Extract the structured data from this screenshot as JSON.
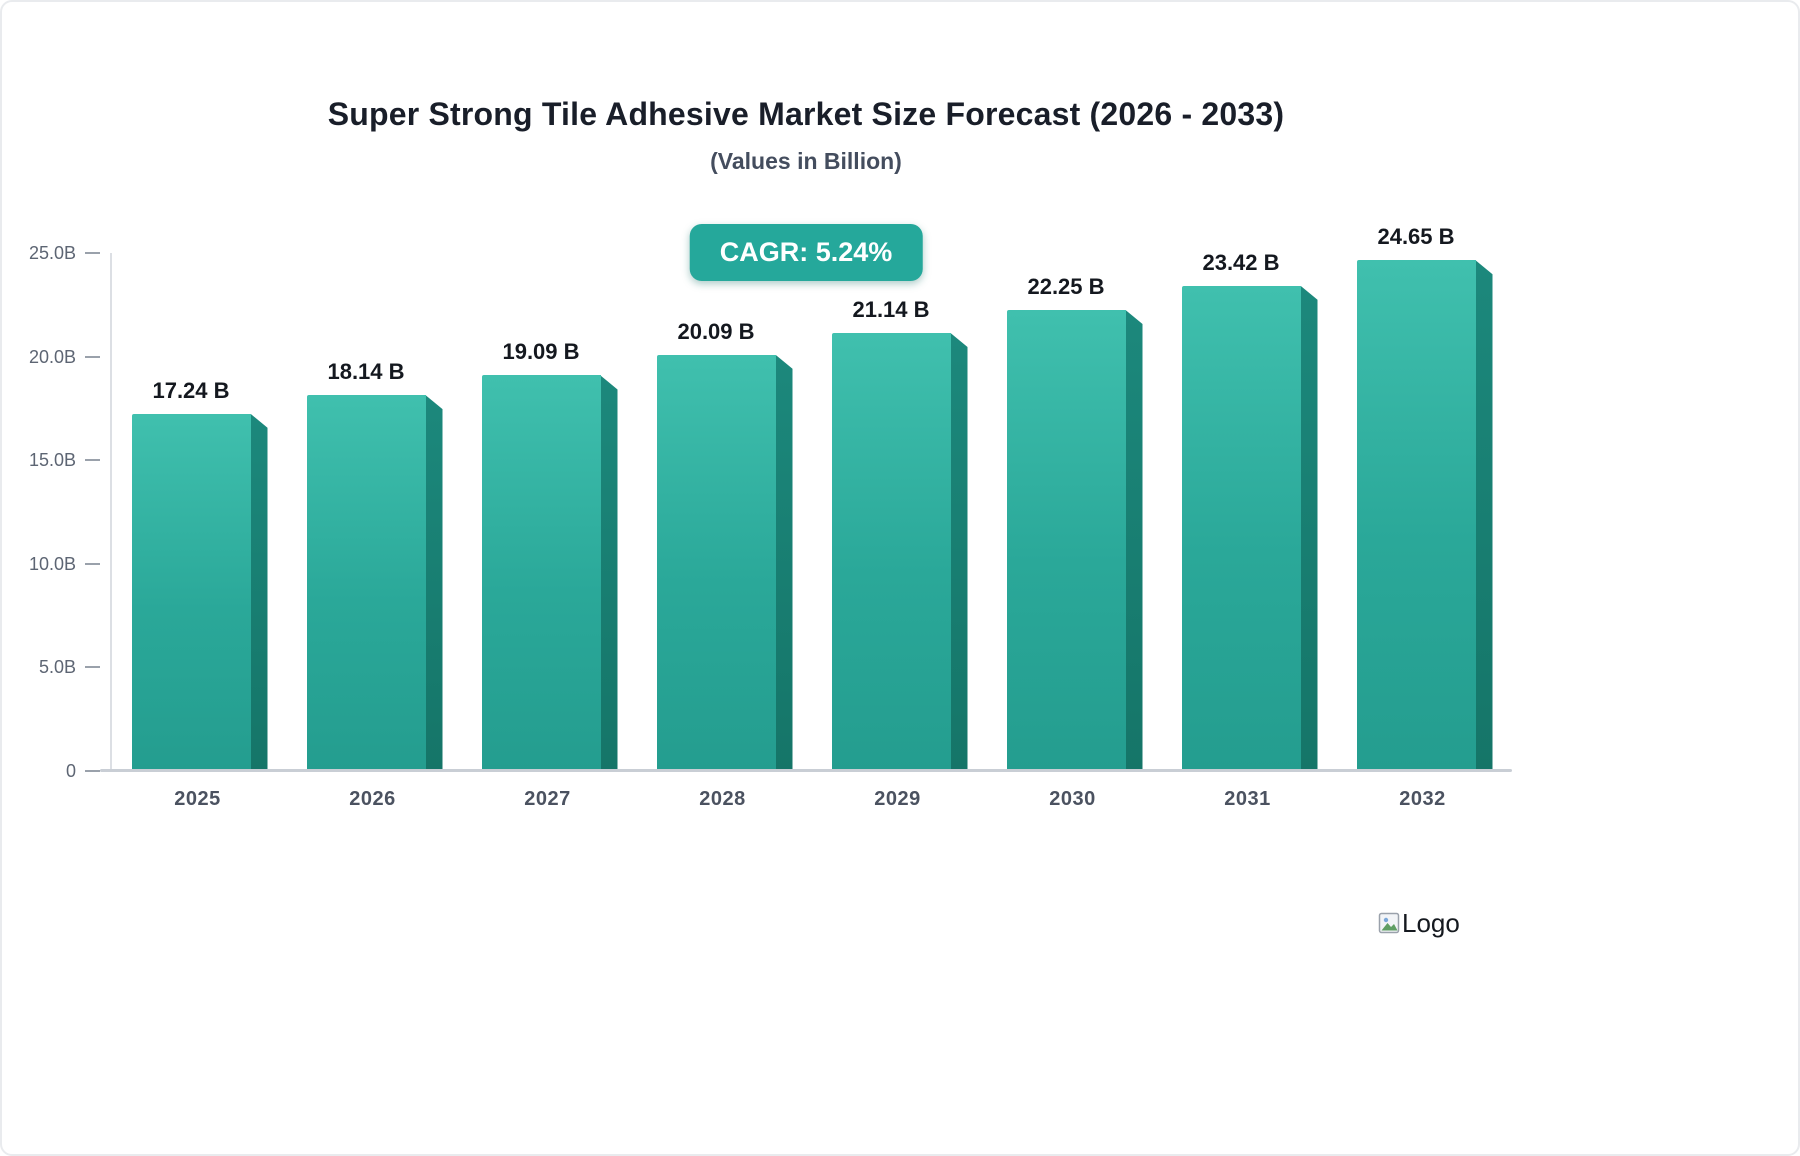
{
  "header": {
    "title": "Super Strong Tile Adhesive Market Size Forecast (2026 - 2033)",
    "subtitle": "(Values in Billion)"
  },
  "badge": {
    "label": "CAGR: 5.24%",
    "background": "#25a89b",
    "text_color": "#ffffff"
  },
  "footer": {
    "logo_text": "Logo"
  },
  "chart_data": {
    "type": "bar",
    "title": "Super Strong Tile Adhesive Market Size Forecast (2026 - 2033)",
    "subtitle": "(Values in Billion)",
    "annotation": "CAGR: 5.24%",
    "categories": [
      "2025",
      "2026",
      "2027",
      "2028",
      "2029",
      "2030",
      "2031",
      "2032"
    ],
    "values": [
      17.24,
      18.14,
      19.09,
      20.09,
      21.14,
      22.25,
      23.42,
      24.65
    ],
    "value_labels": [
      "17.24 B",
      "18.14 B",
      "19.09 B",
      "20.09 B",
      "21.14 B",
      "22.25 B",
      "23.42 B",
      "24.65 B"
    ],
    "xlabel": "",
    "ylabel": "",
    "ylim": [
      0,
      25
    ],
    "yticks": [
      {
        "value": 0,
        "label": "0"
      },
      {
        "value": 5,
        "label": "5.0B"
      },
      {
        "value": 10,
        "label": "10.0B"
      },
      {
        "value": 15,
        "label": "15.0B"
      },
      {
        "value": 20,
        "label": "20.0B"
      },
      {
        "value": 25,
        "label": "25.0B"
      }
    ],
    "grid": false,
    "legend": "none",
    "colors": {
      "bar_gradient_top": "#40c0ae",
      "bar_gradient_bottom": "#249d8f",
      "bar_side_3d": "#177d71",
      "badge_background": "#25a89b",
      "axis_line": "#c9ced5",
      "tick_text": "#5d6573",
      "title_text": "#191e29"
    }
  }
}
